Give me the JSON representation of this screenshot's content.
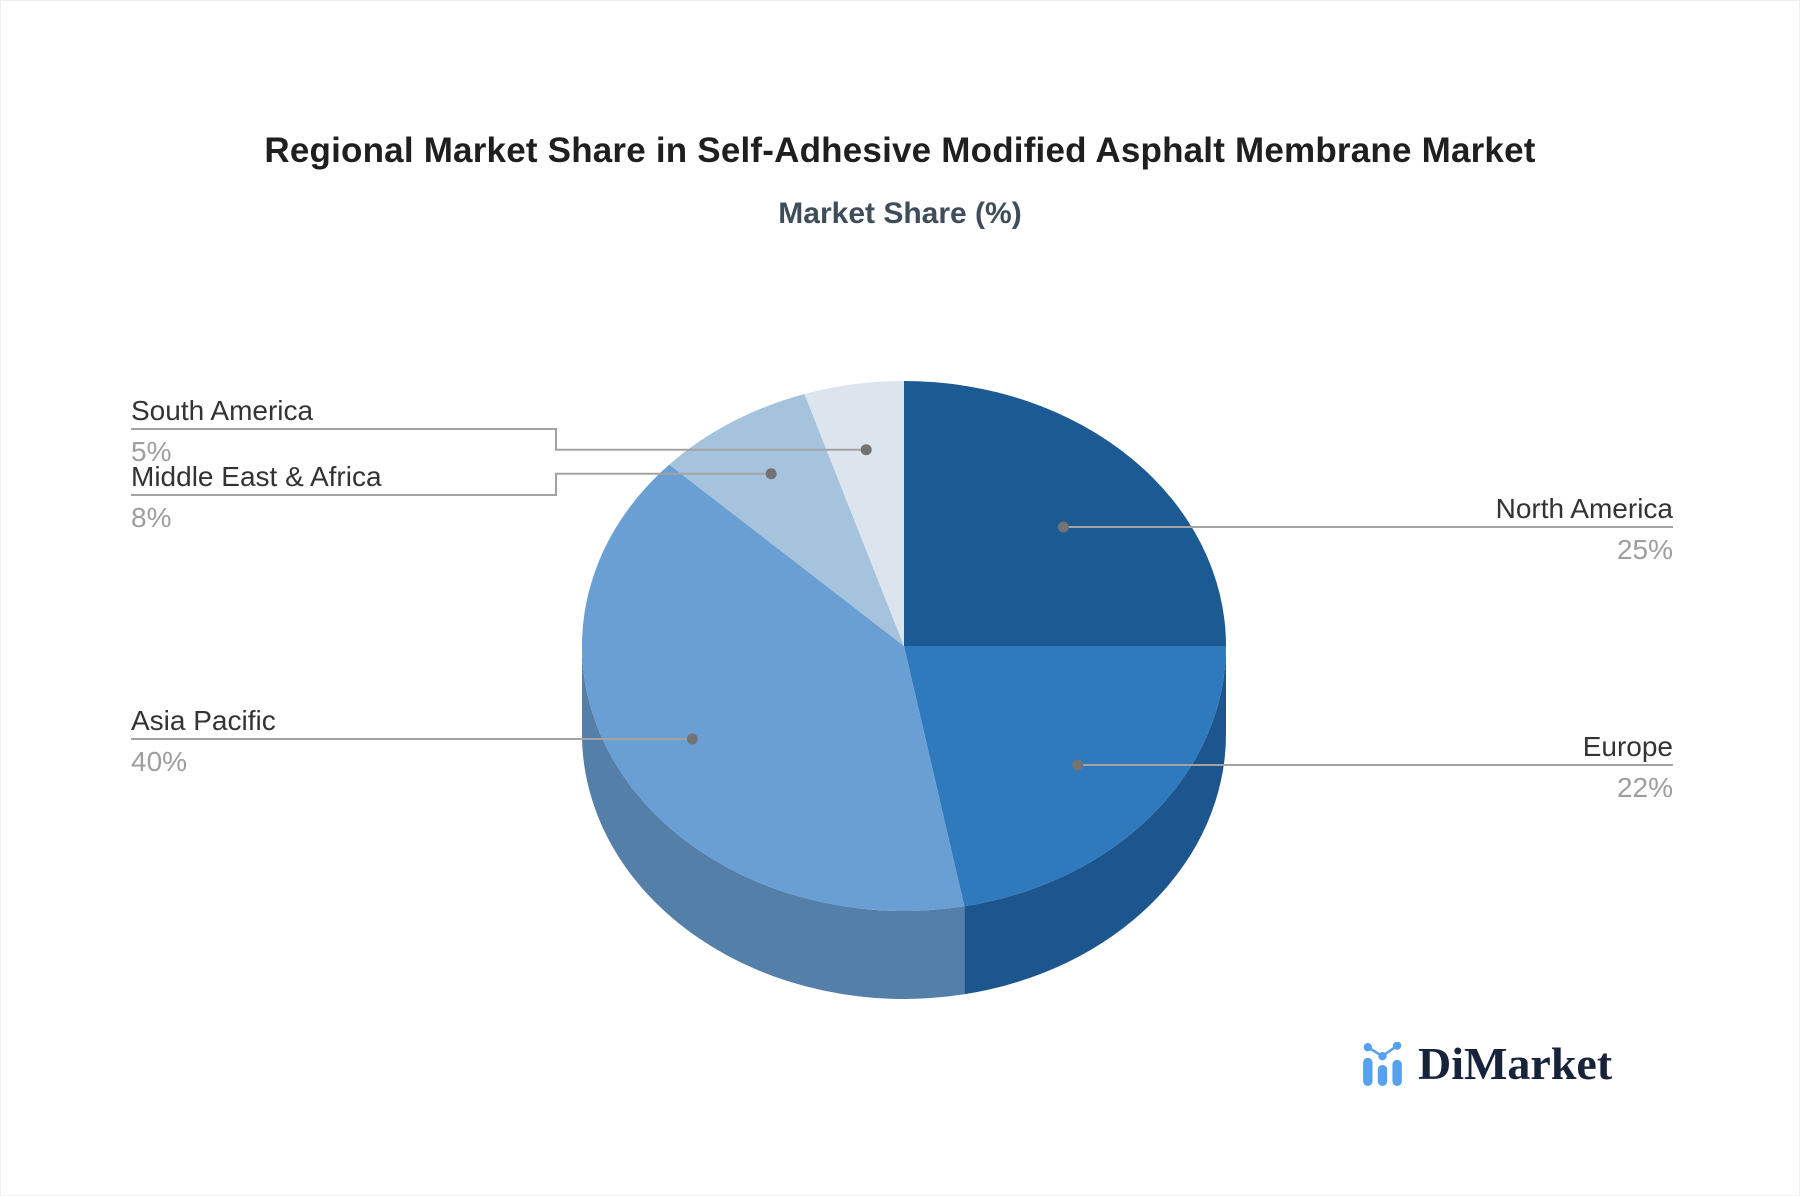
{
  "page": {
    "background": "#ffffff",
    "border_color": "#edeff3"
  },
  "header": {
    "title": "Regional Market Share in Self-Adhesive Modified Asphalt Membrane Market",
    "subtitle": "Market Share (%)",
    "title_color": "#1f1f1f",
    "subtitle_color": "#3f4c59"
  },
  "chart_data": {
    "type": "pie",
    "style": "3d",
    "title": "Regional Market Share in Self-Adhesive Modified Asphalt Membrane Market",
    "subtitle": "Market Share (%)",
    "unit": "%",
    "start_angle_deg": 0,
    "clockwise": true,
    "labels": [
      "North America",
      "Europe",
      "Asia Pacific",
      "Middle East & Africa",
      "South America"
    ],
    "values": [
      25,
      22,
      40,
      8,
      5
    ],
    "display_values": [
      "25%",
      "22%",
      "40%",
      "8%",
      "5%"
    ],
    "colors": [
      "#1c5a94",
      "#2e7abd",
      "#6a9fd3",
      "#a6c3de",
      "#dce4ee"
    ],
    "side_colors": [
      "#174a7c",
      "#1d568f",
      "#547fa9",
      "#8fafc9",
      "#b9c6d6"
    ],
    "legend_position": "callout-labels",
    "grid": false
  },
  "callouts": {
    "label_color": "#333333",
    "value_color": "#9e9e9e",
    "line_color": "#a3a3a3",
    "dot_color": "#737373"
  },
  "logo": {
    "text": "DiMarket",
    "text_color": "#17223b",
    "icon_color": "#55a2f1",
    "icon": "bar-line-chart-icon"
  }
}
